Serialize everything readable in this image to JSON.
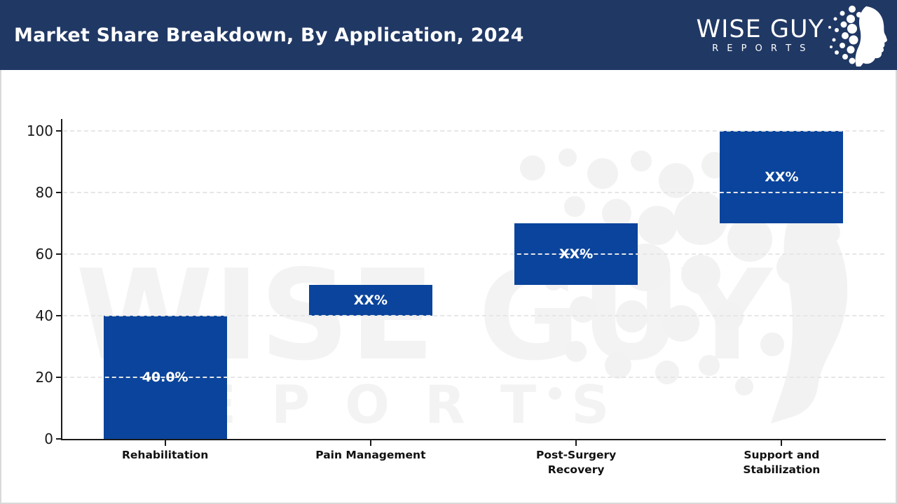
{
  "header": {
    "title": "Market Share Breakdown, By Application, 2024",
    "bg_color": "#203864",
    "logo": {
      "line1": "WISE GUY",
      "line2": "R E P O R T S"
    }
  },
  "watermark": {
    "line1": "WISE GUY",
    "line2": "R E P O R T S"
  },
  "chart_data": {
    "type": "bar",
    "subtype": "waterfall",
    "title": "Market Share Breakdown, By Application, 2024",
    "xlabel": "",
    "ylabel": "",
    "categories": [
      "Rehabilitation",
      "Pain Management",
      "Post-Surgery Recovery",
      "Support and Stabilization"
    ],
    "category_lines": [
      [
        "Rehabilitation"
      ],
      [
        "Pain Management"
      ],
      [
        "Post-Surgery",
        "Recovery"
      ],
      [
        "Support and",
        "Stabilization"
      ]
    ],
    "segments": [
      {
        "category": "Rehabilitation",
        "start": 0,
        "end": 40,
        "label": "40.0%"
      },
      {
        "category": "Pain Management",
        "start": 40,
        "end": 50,
        "label": "XX%"
      },
      {
        "category": "Post-Surgery Recovery",
        "start": 50,
        "end": 70,
        "label": "XX%"
      },
      {
        "category": "Support and Stabilization",
        "start": 70,
        "end": 100,
        "label": "XX%"
      }
    ],
    "yticks": [
      0,
      20,
      40,
      60,
      80,
      100
    ],
    "ylim": [
      0,
      104
    ],
    "grid": true,
    "grid_style": "dashed",
    "legend": false,
    "bar_color": "#0a449c",
    "grid_color": "#e6e6e6",
    "axis_color": "#1a1a1a",
    "label_color": "#ffffff"
  }
}
